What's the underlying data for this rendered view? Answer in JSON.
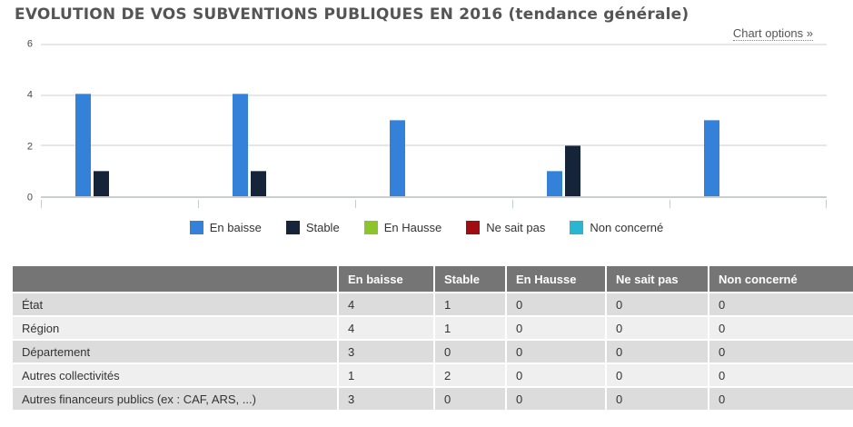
{
  "title": "EVOLUTION DE VOS SUBVENTIONS PUBLIQUES EN 2016 (tendance générale)",
  "chart_options_label": "Chart options »",
  "chart_data": {
    "type": "bar",
    "categories": [
      "État",
      "Région",
      "Département",
      "Autres collectivités",
      "Autres financeurs publics (ex : CAF, ARS, ...)"
    ],
    "series": [
      {
        "name": "En baisse",
        "color": "#3381d8",
        "values": [
          4,
          4,
          3,
          1,
          3
        ]
      },
      {
        "name": "Stable",
        "color": "#152438",
        "values": [
          1,
          1,
          0,
          2,
          0
        ]
      },
      {
        "name": "En Hausse",
        "color": "#8dc42c",
        "values": [
          0,
          0,
          0,
          0,
          0
        ]
      },
      {
        "name": "Ne sait pas",
        "color": "#a00c10",
        "values": [
          0,
          0,
          0,
          0,
          0
        ]
      },
      {
        "name": "Non concerné",
        "color": "#2ab6d1",
        "values": [
          0,
          0,
          0,
          0,
          0
        ]
      }
    ],
    "title": "EVOLUTION DE VOS SUBVENTIONS PUBLIQUES EN 2016 (tendance générale)",
    "xlabel": "",
    "ylabel": "",
    "ylim": [
      0,
      6
    ],
    "yticks": [
      0,
      2,
      4,
      6
    ],
    "grid": true,
    "legend_position": "bottom",
    "x_axis_category_labels_visible": false
  },
  "table": {
    "headers": [
      "",
      "En baisse",
      "Stable",
      "En Hausse",
      "Ne sait pas",
      "Non concerné"
    ],
    "rows": [
      {
        "label": "État",
        "values": [
          "4",
          "1",
          "0",
          "0",
          "0"
        ]
      },
      {
        "label": "Région",
        "values": [
          "4",
          "1",
          "0",
          "0",
          "0"
        ]
      },
      {
        "label": "Département",
        "values": [
          "3",
          "0",
          "0",
          "0",
          "0"
        ]
      },
      {
        "label": "Autres collectivités",
        "values": [
          "1",
          "2",
          "0",
          "0",
          "0"
        ]
      },
      {
        "label": "Autres financeurs publics (ex : CAF, ARS, ...)",
        "values": [
          "3",
          "0",
          "0",
          "0",
          "0"
        ]
      }
    ]
  },
  "colors": {
    "grid_line": "#e7e7e7",
    "axis_line": "#c9ced4",
    "table_header_bg": "#757575",
    "row_dark_bg": "#dcdcdc",
    "row_light_bg": "#efefef",
    "title_text": "#555555",
    "link_text": "#555555"
  }
}
